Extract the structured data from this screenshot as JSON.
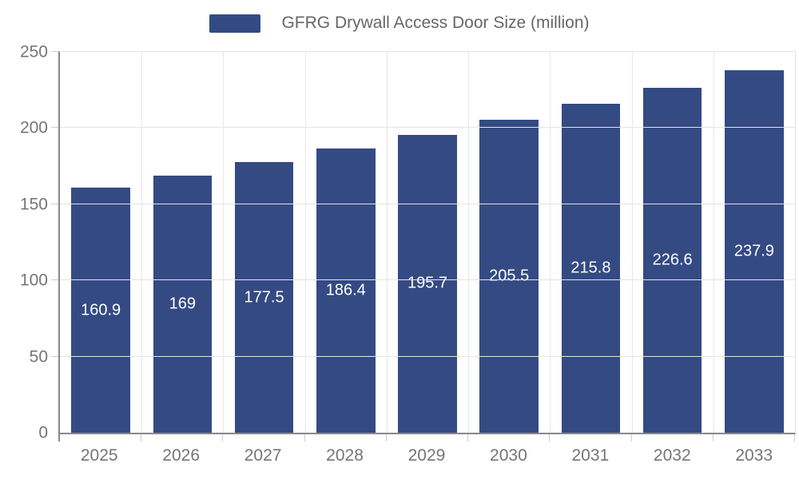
{
  "legend": {
    "label": "GFRG Drywall Access Door Size (million)"
  },
  "chart_data": {
    "type": "bar",
    "title": "GFRG Drywall Access Door Size (million)",
    "categories": [
      "2025",
      "2026",
      "2027",
      "2028",
      "2029",
      "2030",
      "2031",
      "2032",
      "2033"
    ],
    "values": [
      160.9,
      169,
      177.5,
      186.4,
      195.7,
      205.5,
      215.8,
      226.6,
      237.9
    ],
    "value_labels": [
      "160.9",
      "169",
      "177.5",
      "186.4",
      "195.7",
      "205.5",
      "215.8",
      "226.6",
      "237.9"
    ],
    "xlabel": "",
    "ylabel": "",
    "ylim": [
      0,
      250
    ],
    "yticks": [
      0,
      50,
      100,
      150,
      200,
      250
    ],
    "grid": true,
    "legend_position": "top",
    "colors": {
      "bar": "#344a83",
      "axis": "#888888",
      "grid": "#e3e3e3",
      "tick_text": "#757575",
      "legend_text": "#666666",
      "value_text": "#ffffff"
    }
  }
}
